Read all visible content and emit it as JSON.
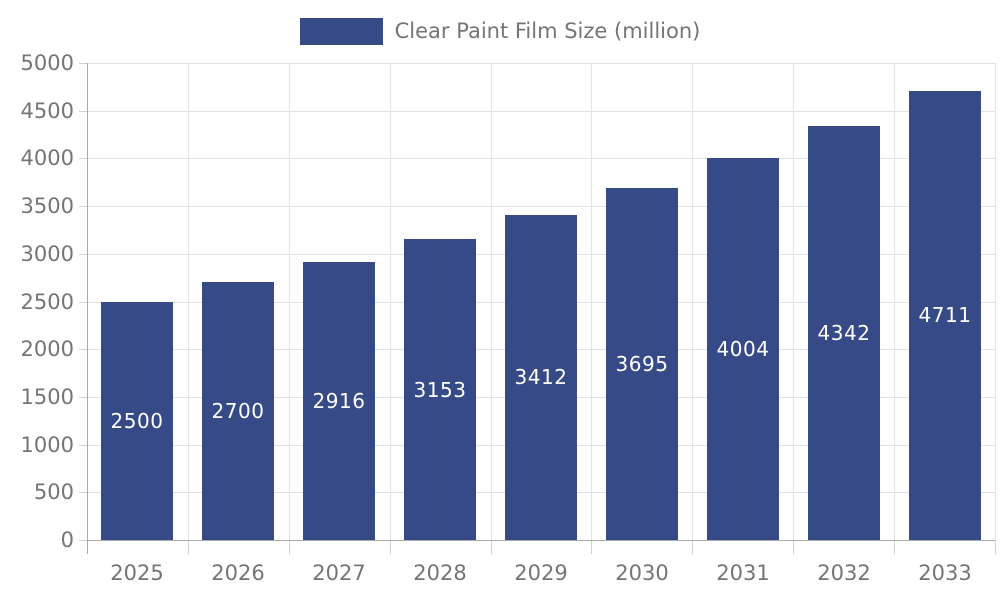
{
  "legend": {
    "label": "Clear Paint Film Size (million)"
  },
  "chart_data": {
    "type": "bar",
    "title": "Clear Paint Film Size (million)",
    "categories": [
      "2025",
      "2026",
      "2027",
      "2028",
      "2029",
      "2030",
      "2031",
      "2032",
      "2033"
    ],
    "series": [
      {
        "name": "Clear Paint Film Size (million)",
        "values": [
          2500,
          2700,
          2916,
          3153,
          3412,
          3695,
          4004,
          4342,
          4711
        ]
      }
    ],
    "xlabel": "",
    "ylabel": "",
    "ylim": [
      0,
      5000
    ],
    "ytick_step": 500,
    "yticks": [
      0,
      500,
      1000,
      1500,
      2000,
      2500,
      3000,
      3500,
      4000,
      4500,
      5000
    ],
    "grid": true,
    "legend_position": "top-center",
    "value_labels": "inside-center",
    "colors": {
      "bar": "#364A87",
      "bar_value_label": "#FFFFFF",
      "axis_text": "#757575",
      "legend_text": "#757575",
      "grid_line": "#E2E2E8",
      "axis_line": "#A8A8A8",
      "tick_line": "#CFCFD4",
      "background": "#FFFFFF"
    }
  }
}
